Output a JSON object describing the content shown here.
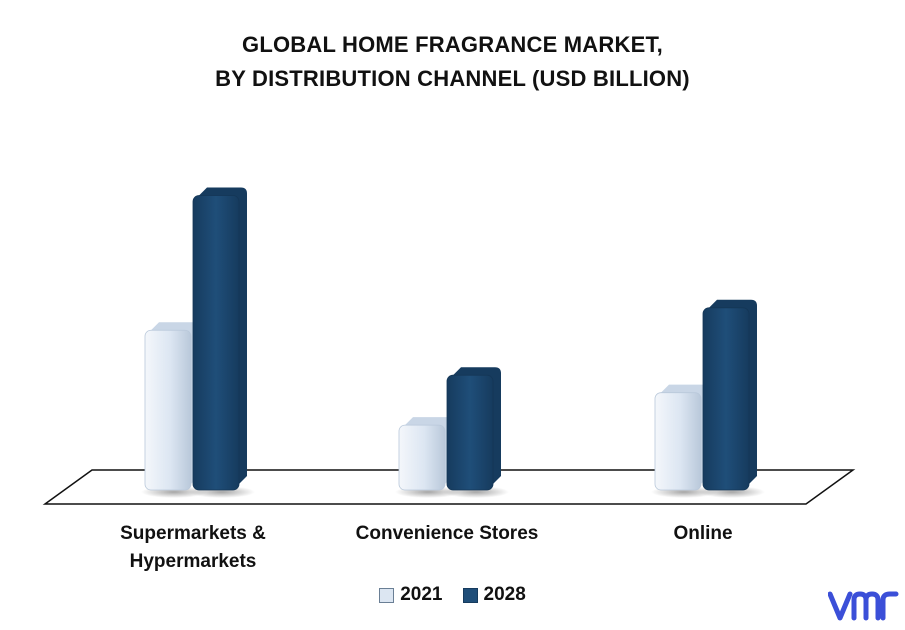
{
  "chart_data": {
    "type": "bar",
    "title": [
      "GLOBAL HOME FRAGRANCE MARKET,",
      "BY DISTRIBUTION CHANNEL (USD BILLION)"
    ],
    "categories": [
      "Supermarkets & Hypermarkets",
      "Convenience Stores",
      "Online"
    ],
    "category_label_lines": [
      [
        "Supermarkets &",
        "Hypermarkets"
      ],
      [
        "Convenience Stores"
      ],
      [
        "Online"
      ]
    ],
    "series": [
      {
        "name": "2021",
        "values": [
          3.2,
          1.3,
          1.95
        ],
        "color": "#dce6f2"
      },
      {
        "name": "2028",
        "values": [
          5.9,
          2.3,
          3.65
        ],
        "color": "#1f4e79"
      }
    ],
    "ylim": [
      0,
      6.5
    ],
    "grid": false,
    "legend_position": "bottom-center",
    "style": "3d-bars"
  },
  "brand": {
    "logo_name": "vmr-logo",
    "color": "#3b4fd8"
  }
}
